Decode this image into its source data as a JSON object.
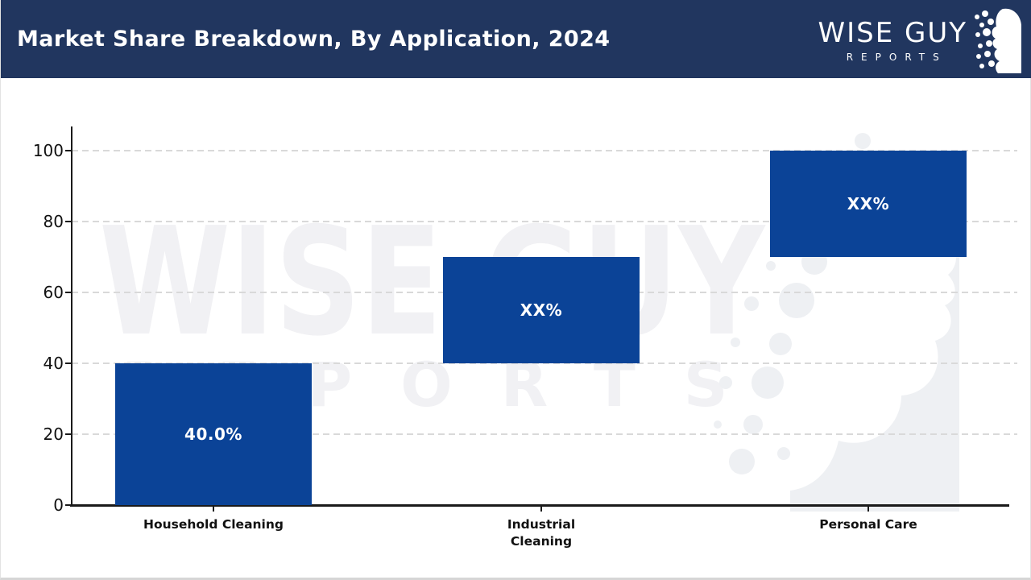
{
  "header": {
    "title": "Market Share Breakdown, By Application, 2024",
    "bg_color": "#21365f",
    "logo": {
      "line1": "WISE GUY",
      "line2": "REPORTS"
    }
  },
  "watermark": {
    "line1": "WISE GUY",
    "line2": "REPORTS"
  },
  "chart_data": {
    "type": "bar",
    "variant": "floating-segment (waterfall-style market share breakdown)",
    "title": "Market Share Breakdown, By Application, 2024",
    "categories": [
      "Household Cleaning",
      "Industrial\nCleaning",
      "Personal Care"
    ],
    "segments": [
      {
        "category": "Household Cleaning",
        "start": 0,
        "end": 40,
        "label": "40.0%"
      },
      {
        "category": "Industrial Cleaning",
        "start": 40,
        "end": 70,
        "label": "XX%"
      },
      {
        "category": "Personal Care",
        "start": 70,
        "end": 100,
        "label": "XX%"
      }
    ],
    "yticks": [
      0,
      20,
      40,
      60,
      80,
      100
    ],
    "ylim": [
      0,
      105
    ],
    "xlabel": "",
    "ylabel": "",
    "grid": "horizontal dashed",
    "legend": "none",
    "bar_color": "#0b4397",
    "grid_color": "#d9d9d9",
    "axis_color": "#1a1a1a"
  }
}
